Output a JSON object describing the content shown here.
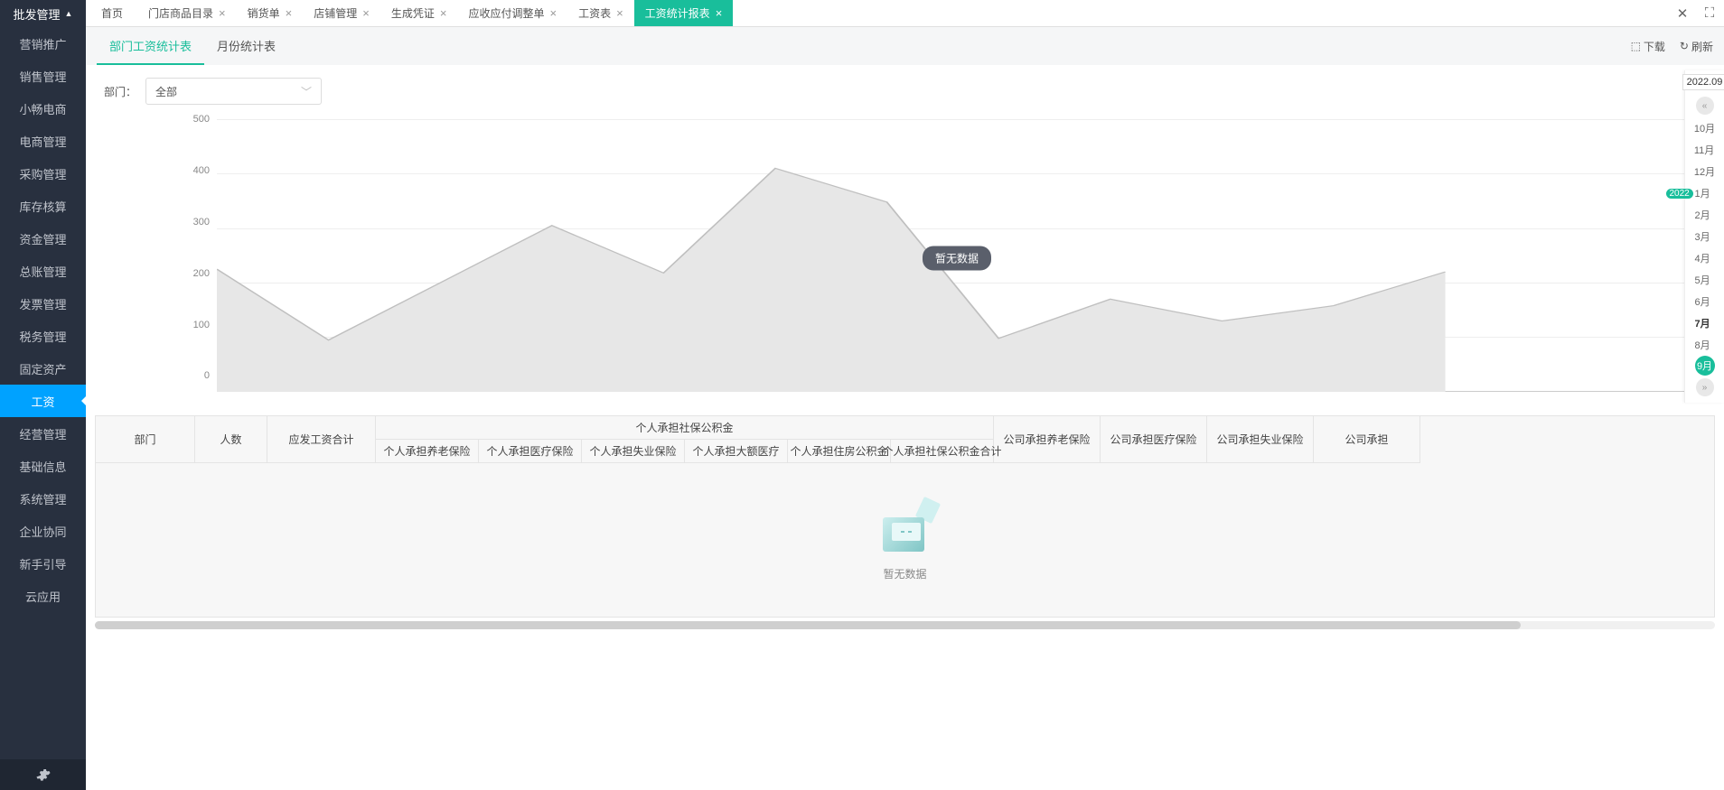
{
  "sidebar": {
    "header": "批发管理",
    "items": [
      "营销推广",
      "销售管理",
      "小畅电商",
      "电商管理",
      "采购管理",
      "库存核算",
      "资金管理",
      "总账管理",
      "发票管理",
      "税务管理",
      "固定资产",
      "工资",
      "经营管理",
      "基础信息",
      "系统管理",
      "企业协同",
      "新手引导",
      "云应用"
    ],
    "active_index": 11
  },
  "tabs": {
    "home": "首页",
    "list": [
      "门店商品目录",
      "销货单",
      "店铺管理",
      "生成凭证",
      "应收应付调整单",
      "工资表",
      "工资统计报表"
    ],
    "active_index": 6
  },
  "subtabs": {
    "items": [
      "部门工资统计表",
      "月份统计表"
    ],
    "active_index": 0,
    "download": "下载",
    "refresh": "刷新"
  },
  "filter": {
    "label": "部门：",
    "value": "全部"
  },
  "chart": {
    "type": "area",
    "ylim": [
      0,
      500
    ],
    "ytick_step": 100,
    "y_ticks": [
      "0",
      "100",
      "200",
      "300",
      "400",
      "500"
    ],
    "grid_color": "#eeeeee",
    "axis_color": "#cccccc",
    "fill_color": "#e7e7e7",
    "stroke_color": "#bfbfbf",
    "x_count": 12,
    "values": [
      225,
      95,
      200,
      305,
      218,
      410,
      348,
      98,
      170,
      130,
      158,
      220
    ],
    "last_point_x_ratio": 0.83,
    "no_data_label": "暂无数据"
  },
  "table": {
    "cols_fixed": [
      "部门",
      "人数",
      "应发工资合计"
    ],
    "group1_header": "个人承担社保公积金",
    "group1_cols": [
      "个人承担养老保险",
      "个人承担医疗保险",
      "个人承担失业保险",
      "个人承担大额医疗",
      "个人承担住房公积金",
      "个人承担社保公积金合计"
    ],
    "extra_cols": [
      "公司承担养老保险",
      "公司承担医疗保险",
      "公司承担失业保险",
      "公司承担"
    ],
    "empty_text": "暂无数据"
  },
  "timeline": {
    "current": "2022.09",
    "year_badge": "2022",
    "prev_months": [
      "10月",
      "11月",
      "12月"
    ],
    "months": [
      "1月",
      "2月",
      "3月",
      "4月",
      "5月",
      "6月",
      "7月",
      "8月",
      "9月"
    ],
    "bold_month": "7月",
    "active_month": "9月"
  }
}
